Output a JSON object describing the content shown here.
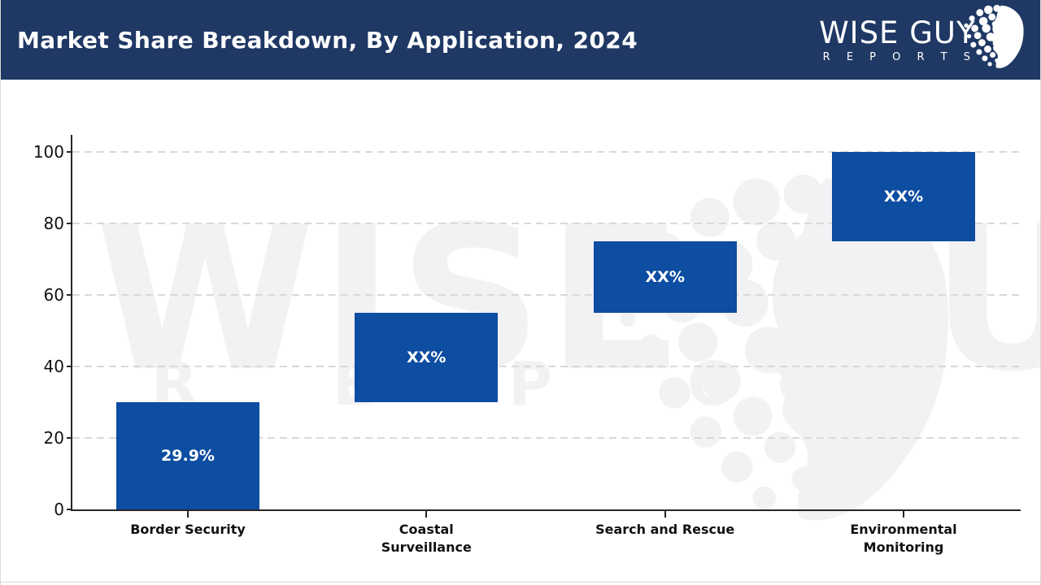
{
  "header": {
    "title": "Market Share Breakdown, By Application, 2024",
    "logo": {
      "line1": "WISE GUY",
      "line2": "R E P O R T S",
      "face_icon": "dotted-head-icon"
    }
  },
  "watermark": {
    "line1": "WISE GUY",
    "line2": "R E P O R T S",
    "head_icon": "dotted-head-icon"
  },
  "colors": {
    "header_bg": "#1f3864",
    "bar_blue": "#0d4da2",
    "grid_gray": "#d9d9d9",
    "watermark_gray": "#f2f2f4",
    "axis_black": "#262626",
    "label_white": "#ffffff"
  },
  "chart_data": {
    "type": "bar",
    "subtype": "waterfall",
    "title": "Market Share Breakdown, By Application, 2024",
    "categories": [
      "Border Security",
      "Coastal\nSurveillance",
      "Search and Rescue",
      "Environmental\nMonitoring"
    ],
    "segments": [
      {
        "category": "Border Security",
        "start": 0,
        "end": 29.9,
        "label": "29.9%"
      },
      {
        "category": "Coastal Surveillance",
        "start": 29.9,
        "end": 55,
        "label": "XX%"
      },
      {
        "category": "Search and Rescue",
        "start": 55,
        "end": 75,
        "label": "XX%"
      },
      {
        "category": "Environmental Monitoring",
        "start": 75,
        "end": 100,
        "label": "XX%"
      }
    ],
    "yticks": [
      0,
      20,
      40,
      60,
      80,
      100
    ],
    "ylim": [
      0,
      105
    ],
    "xlabel": "",
    "ylabel": "",
    "grid": "horizontal-dashed",
    "legend": "none",
    "bar_color": "#0d4da2"
  }
}
